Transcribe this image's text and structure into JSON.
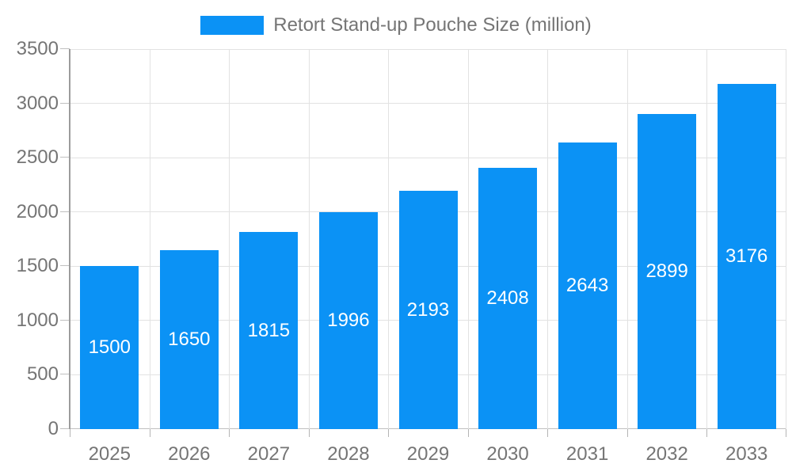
{
  "legend": {
    "label": "Retort Stand-up Pouche Size (million)"
  },
  "chart_data": {
    "type": "bar",
    "title": "Retort Stand-up Pouche Size (million)",
    "categories": [
      "2025",
      "2026",
      "2027",
      "2028",
      "2029",
      "2030",
      "2031",
      "2032",
      "2033"
    ],
    "series": [
      {
        "name": "Retort Stand-up Pouche Size (million)",
        "values": [
          1500,
          1650,
          1815,
          1996,
          2193,
          2408,
          2643,
          2899,
          3176
        ]
      }
    ],
    "value_labels_shown": true,
    "xlabel": "",
    "ylabel": "",
    "ylim": [
      0,
      3500
    ],
    "ytick_step": 500,
    "yticks": [
      0,
      500,
      1000,
      1500,
      2000,
      2500,
      3000,
      3500
    ],
    "grid": true,
    "legend_position": "top-center"
  },
  "colors": {
    "bar": "#0b92f5",
    "grid": "#e2e2e2",
    "axis_line": "#9c9c9c",
    "baseline": "#c0c0c0",
    "tick": "#b5b5b5",
    "text": "#757575",
    "value_label": "#ffffff",
    "background": "#ffffff"
  }
}
